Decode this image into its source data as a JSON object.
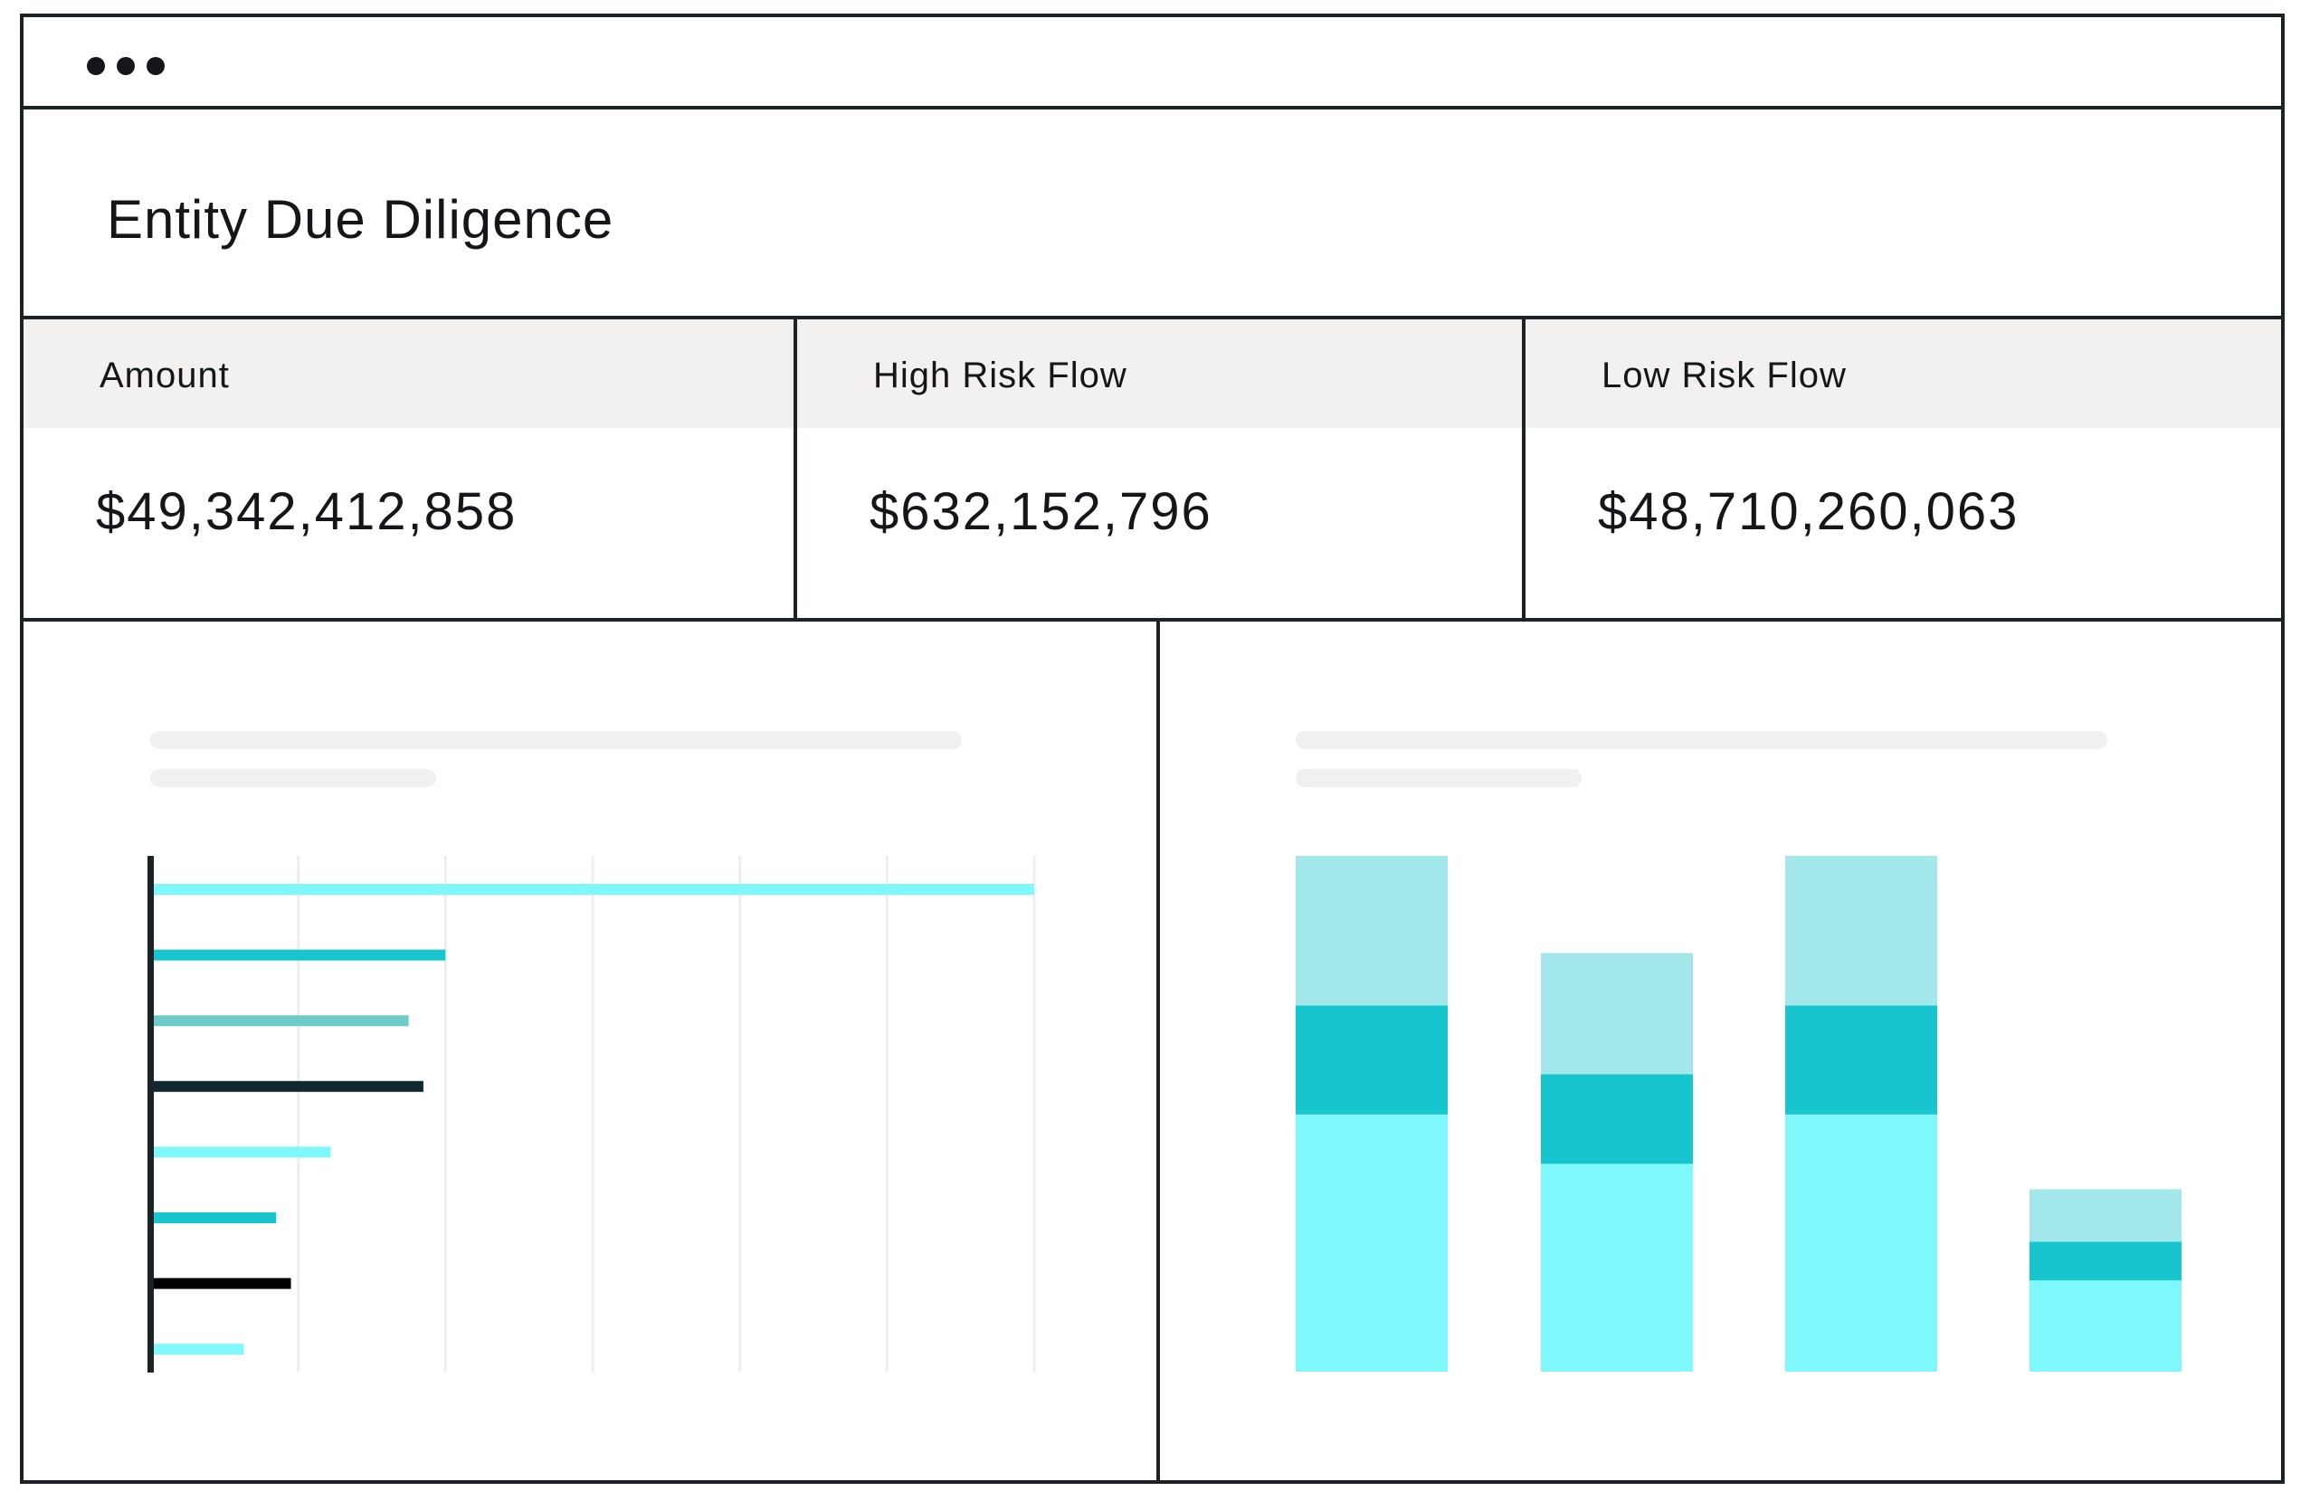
{
  "window": {
    "menu_icon": "more-horizontal-icon"
  },
  "header": {
    "title": "Entity Due Diligence"
  },
  "metrics": [
    {
      "label": "Amount",
      "value": "$49,342,412,858"
    },
    {
      "label": "High Risk Flow",
      "value": "$632,152,796"
    },
    {
      "label": "Low Risk Flow",
      "value": "$48,710,260,063"
    }
  ],
  "colors": {
    "border": "#1b2326",
    "metric_header_bg": "#f2f1ef",
    "placeholder": "#eef0f2",
    "gridline": "#eeeeee",
    "cyan_light": "#7ff8fc",
    "cyan_mid": "#17c5cf",
    "cyan_pale": "#a2e8eb",
    "teal_muted": "#6fcbc8",
    "navy": "#102830",
    "black": "#000000"
  },
  "chart_data": [
    {
      "type": "bar",
      "orientation": "horizontal",
      "x_range": [
        0,
        6
      ],
      "grid": true,
      "values": [
        6.0,
        2.0,
        1.75,
        1.85,
        1.22,
        0.85,
        0.95,
        0.63
      ],
      "colors": [
        "#7ff8fc",
        "#17c5cf",
        "#6fcbc8",
        "#102830",
        "#7ff8fc",
        "#17c5cf",
        "#000000",
        "#7ff8fc"
      ]
    },
    {
      "type": "bar",
      "stacked": true,
      "y_range": [
        0,
        345
      ],
      "series": [
        {
          "values": [
            172,
            139,
            172,
            61
          ],
          "color": "#7ff8fc"
        },
        {
          "values": [
            73,
            60,
            73,
            26
          ],
          "color": "#17c5cf"
        },
        {
          "values": [
            100,
            81,
            100,
            35
          ],
          "color": "#a2e8eb"
        }
      ]
    }
  ]
}
